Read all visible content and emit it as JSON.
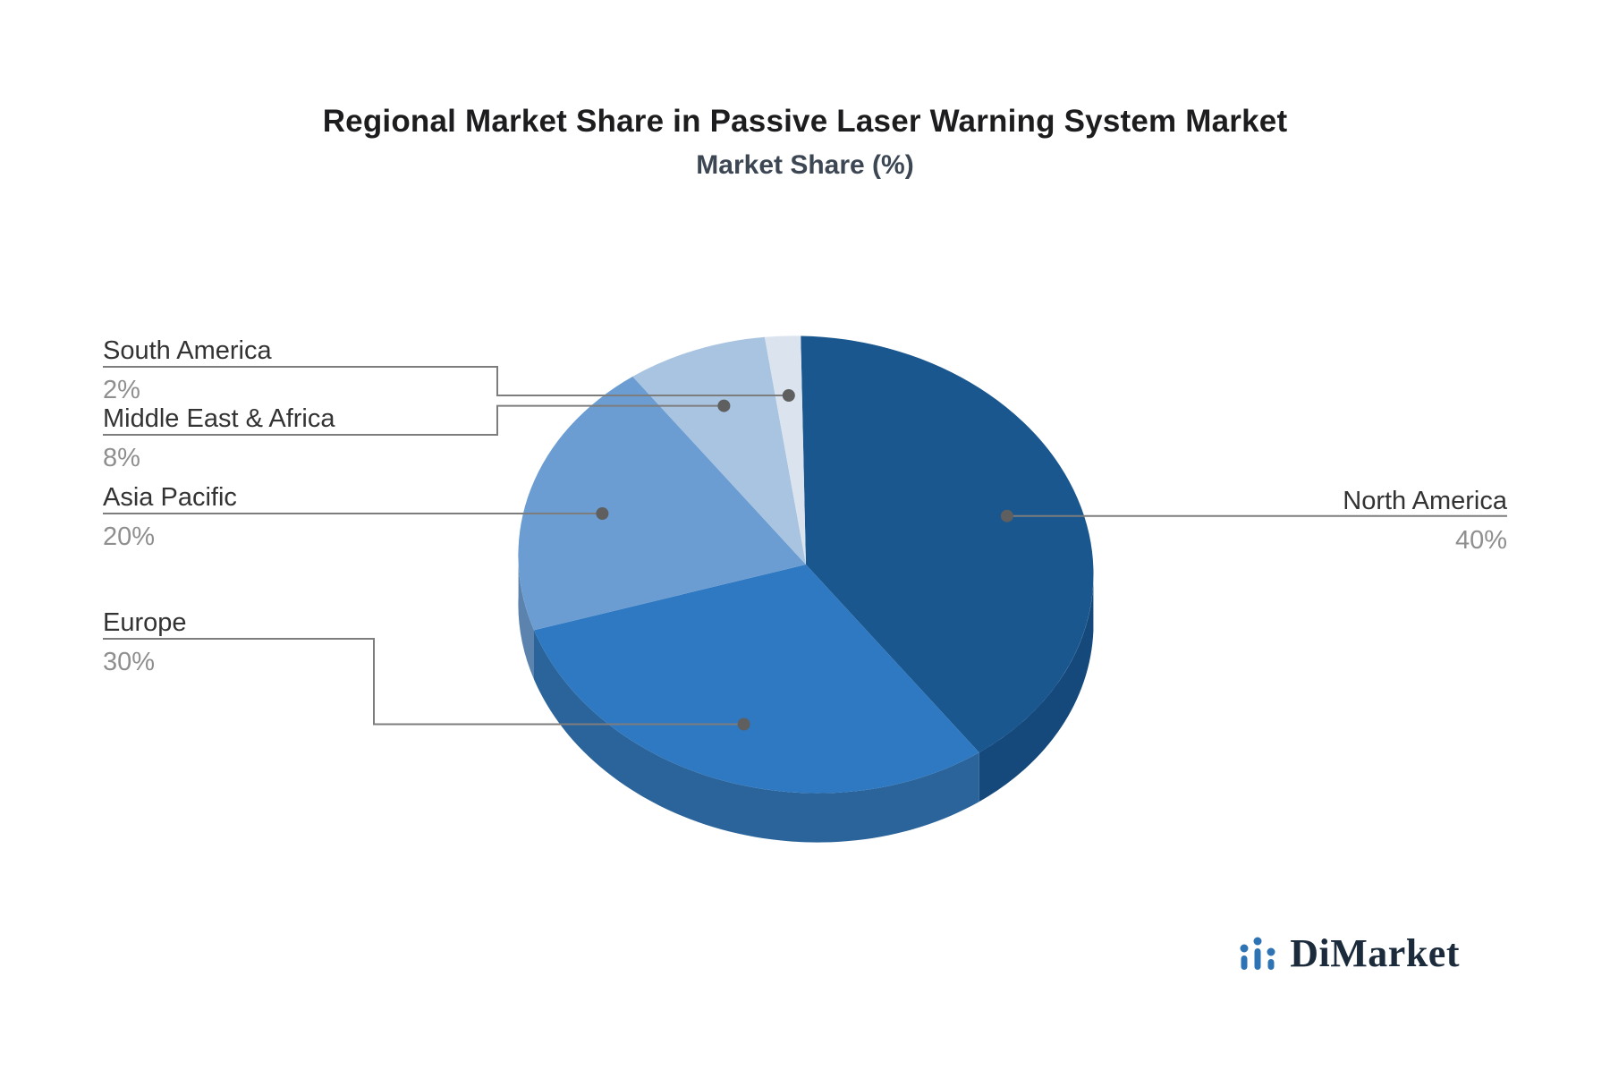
{
  "title": "Regional Market Share in Passive Laser Warning System Market",
  "subtitle": "Market Share (%)",
  "watermark": {
    "text": "DiMarket"
  },
  "chart_data": {
    "type": "pie",
    "style": "3d",
    "title": "Regional Market Share in Passive Laser Warning System Market",
    "subtitle": "Market Share (%)",
    "unit": "%",
    "direction": "clockwise",
    "start_angle_deg": -5,
    "legend": "none",
    "labels": "leader-lines with category name and percent value",
    "series": [
      {
        "name": "North America",
        "value": 40,
        "label": "40%",
        "color": "#1a578f",
        "side_color": "#15497c"
      },
      {
        "name": "Europe",
        "value": 30,
        "label": "30%",
        "color": "#2e79c1",
        "side_color": "#2a649b"
      },
      {
        "name": "Asia Pacific",
        "value": 20,
        "label": "20%",
        "color": "#6b9dd2",
        "side_color": "#5b83ad"
      },
      {
        "name": "Middle East & Africa",
        "value": 8,
        "label": "8%",
        "color": "#a8c4e1"
      },
      {
        "name": "South America",
        "value": 2,
        "label": "2%",
        "color": "#dbe3ee"
      }
    ],
    "leader_line_color": "#7d7d7d",
    "leader_dot_color": "#5f5f5f",
    "label_text_color": "#333333",
    "percent_text_color": "#8f8f8f"
  }
}
